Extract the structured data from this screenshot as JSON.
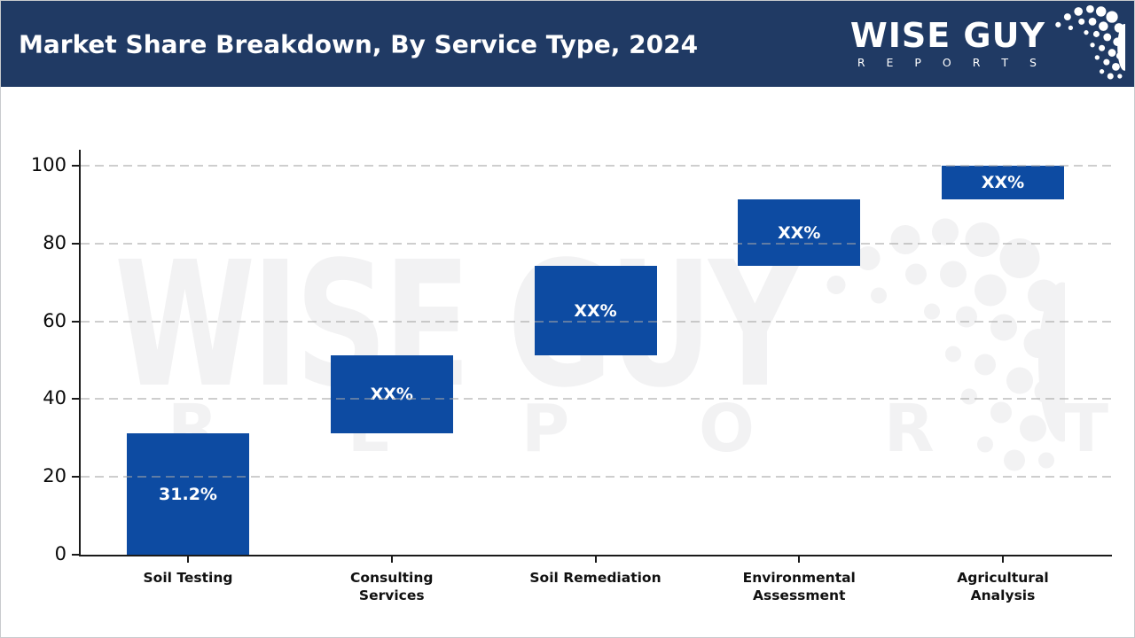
{
  "header": {
    "title": "Market Share Breakdown, By Service Type, 2024",
    "logo": {
      "name": "WISE GUY",
      "tagline": "R E P O R T S"
    }
  },
  "colors": {
    "header_bg": "#203A64",
    "bar": "#0D4BA2",
    "axis": "#1a1a1a",
    "bar_label_text": "#ffffff",
    "watermark": "#f2f2f3"
  },
  "chart_data": {
    "type": "bar",
    "subtype": "waterfall",
    "title": "Market Share Breakdown, By Service Type, 2024",
    "categories": [
      "Soil Testing",
      "Consulting\nServices",
      "Soil Remediation",
      "Environmental\nAssessment",
      "Agricultural\nAnalysis"
    ],
    "segments": [
      {
        "category": "Soil Testing",
        "start": 0,
        "end": 31.2,
        "label": "31.2%"
      },
      {
        "category": "Consulting Services",
        "start": 31.2,
        "end": 51.2,
        "label": "XX%"
      },
      {
        "category": "Soil Remediation",
        "start": 51.2,
        "end": 74.3,
        "label": "XX%"
      },
      {
        "category": "Environmental Assessment",
        "start": 74.3,
        "end": 91.3,
        "label": "XX%"
      },
      {
        "category": "Agricultural Analysis",
        "start": 91.3,
        "end": 100,
        "label": "XX%"
      }
    ],
    "ylim": [
      0,
      100
    ],
    "yticks": [
      0,
      20,
      40,
      60,
      80,
      100
    ],
    "grid": "horizontal-dashed",
    "legend": "none",
    "xlabel": "",
    "ylabel": ""
  },
  "watermark": {
    "line1": "WISE GUY",
    "line2": "R E P O R T S"
  }
}
